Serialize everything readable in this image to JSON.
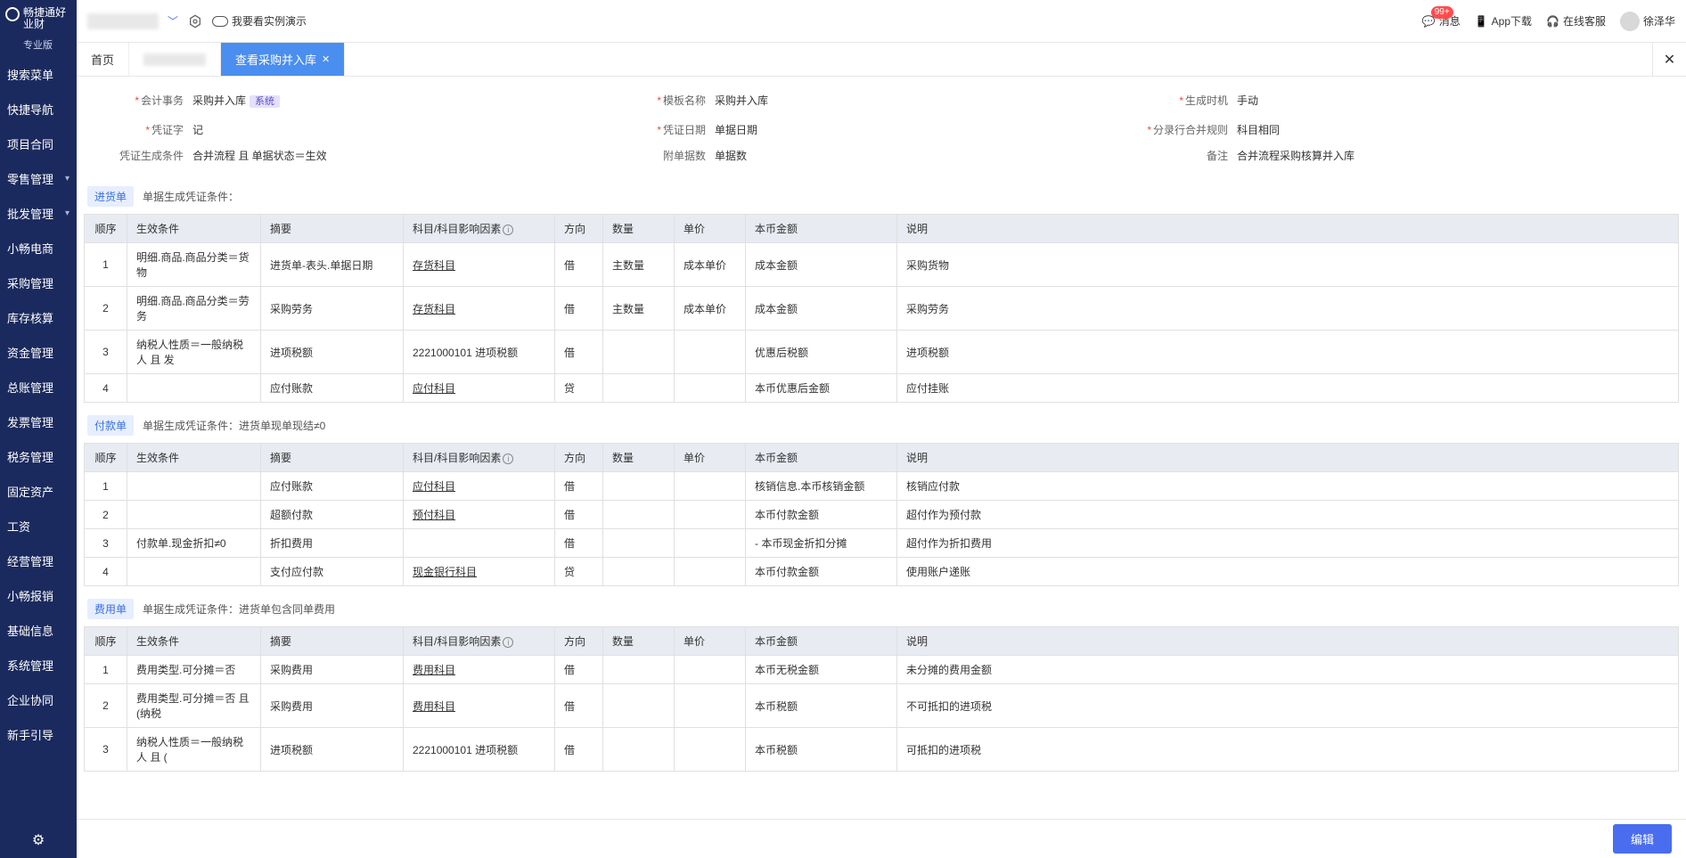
{
  "brand": {
    "name": "畅捷通好业财",
    "edition": "专业版"
  },
  "sidebar": {
    "items": [
      {
        "label": "搜索菜单",
        "arrow": false
      },
      {
        "label": "快捷导航",
        "arrow": false
      },
      {
        "label": "项目合同",
        "arrow": false
      },
      {
        "label": "零售管理",
        "arrow": true
      },
      {
        "label": "批发管理",
        "arrow": true
      },
      {
        "label": "小畅电商",
        "arrow": false
      },
      {
        "label": "采购管理",
        "arrow": false
      },
      {
        "label": "库存核算",
        "arrow": false
      },
      {
        "label": "资金管理",
        "arrow": false
      },
      {
        "label": "总账管理",
        "arrow": false
      },
      {
        "label": "发票管理",
        "arrow": false
      },
      {
        "label": "税务管理",
        "arrow": false
      },
      {
        "label": "固定资产",
        "arrow": false
      },
      {
        "label": "工资",
        "arrow": false
      },
      {
        "label": "经营管理",
        "arrow": false
      },
      {
        "label": "小畅报销",
        "arrow": false
      },
      {
        "label": "基础信息",
        "arrow": false
      },
      {
        "label": "系统管理",
        "arrow": false
      },
      {
        "label": "企业协同",
        "arrow": false
      },
      {
        "label": "新手引导",
        "arrow": false
      }
    ]
  },
  "topbar": {
    "demo": "我要看实例演示",
    "msg_label": "消息",
    "msg_badge": "99+",
    "download": "App下载",
    "service": "在线客服",
    "user": "徐泽华"
  },
  "tabs": {
    "home": "首页",
    "active": "查看采购并入库"
  },
  "form": {
    "f1_label": "会计事务",
    "f1_val": "采购并入库",
    "f1_tag": "系统",
    "f2_label": "模板名称",
    "f2_val": "采购并入库",
    "f3_label": "生成时机",
    "f3_val": "手动",
    "f4_label": "凭证字",
    "f4_val": "记",
    "f5_label": "凭证日期",
    "f5_val": "单据日期",
    "f6_label": "分录行合并规则",
    "f6_val": "科目相同",
    "f7_label": "凭证生成条件",
    "f7_val": "合并流程 且 单据状态＝生效",
    "f8_label": "附单据数",
    "f8_val": "单据数",
    "f9_label": "备注",
    "f9_val": "合并流程采购核算并入库"
  },
  "cols": {
    "seq": "顺序",
    "cond": "生效条件",
    "summary": "摘要",
    "subj": "科目/科目影响因素",
    "info": "ⓘ",
    "dir": "方向",
    "qty": "数量",
    "price": "单价",
    "amt": "本币金额",
    "desc": "说明"
  },
  "sec1": {
    "tag": "进货单",
    "sub": "单据生成凭证条件：",
    "rows": [
      {
        "seq": "1",
        "cond": "明细.商品.商品分类＝货物",
        "summary": "进货单-表头.单据日期",
        "subj": "存货科目",
        "dir": "借",
        "qty": "主数量",
        "price": "成本单价",
        "amt": "成本金额",
        "desc": "采购货物"
      },
      {
        "seq": "2",
        "cond": "明细.商品.商品分类＝劳务",
        "summary": "采购劳务",
        "subj": "存货科目",
        "dir": "借",
        "qty": "主数量",
        "price": "成本单价",
        "amt": "成本金额",
        "desc": "采购劳务"
      },
      {
        "seq": "3",
        "cond": "纳税人性质＝一般纳税人 且 发",
        "summary": "进项税额",
        "subj": "2221000101 进项税额",
        "dir": "借",
        "qty": "",
        "price": "",
        "amt": "优惠后税额",
        "desc": "进项税额"
      },
      {
        "seq": "4",
        "cond": "",
        "summary": "应付账款",
        "subj": "应付科目",
        "dir": "贷",
        "qty": "",
        "price": "",
        "amt": "本币优惠后金额",
        "desc": "应付挂账"
      }
    ]
  },
  "sec2": {
    "tag": "付款单",
    "sub": "单据生成凭证条件：进货单现单现结≠0",
    "rows": [
      {
        "seq": "1",
        "cond": "",
        "summary": "应付账款",
        "subj": "应付科目",
        "dir": "借",
        "qty": "",
        "price": "",
        "amt": "核销信息.本币核销金额",
        "desc": "核销应付款"
      },
      {
        "seq": "2",
        "cond": "",
        "summary": "超额付款",
        "subj": "预付科目",
        "dir": "借",
        "qty": "",
        "price": "",
        "amt": "本币付款金额",
        "desc": "超付作为预付款"
      },
      {
        "seq": "3",
        "cond": "付款单.现金折扣≠0",
        "summary": "折扣费用",
        "subj": "",
        "dir": "借",
        "qty": "",
        "price": "",
        "amt": "- 本币现金折扣分摊",
        "desc": "超付作为折扣费用"
      },
      {
        "seq": "4",
        "cond": "",
        "summary": "支付应付款",
        "subj": "现金银行科目",
        "dir": "贷",
        "qty": "",
        "price": "",
        "amt": "本币付款金额",
        "desc": "使用账户递账"
      }
    ]
  },
  "sec3": {
    "tag": "费用单",
    "sub": "单据生成凭证条件：进货单包含同单费用",
    "rows": [
      {
        "seq": "1",
        "cond": "费用类型.可分摊＝否",
        "summary": "采购费用",
        "subj": "费用科目",
        "dir": "借",
        "qty": "",
        "price": "",
        "amt": "本币无税金额",
        "desc": "未分摊的费用金额"
      },
      {
        "seq": "2",
        "cond": "费用类型.可分摊＝否 且 (纳税",
        "summary": "采购费用",
        "subj": "费用科目",
        "dir": "借",
        "qty": "",
        "price": "",
        "amt": "本币税额",
        "desc": "不可抵扣的进项税"
      },
      {
        "seq": "3",
        "cond": "纳税人性质＝一般纳税人 且 (",
        "summary": "进项税额",
        "subj": "2221000101 进项税额",
        "dir": "借",
        "qty": "",
        "price": "",
        "amt": "本币税额",
        "desc": "可抵扣的进项税"
      }
    ]
  },
  "footer": {
    "edit": "编辑"
  }
}
